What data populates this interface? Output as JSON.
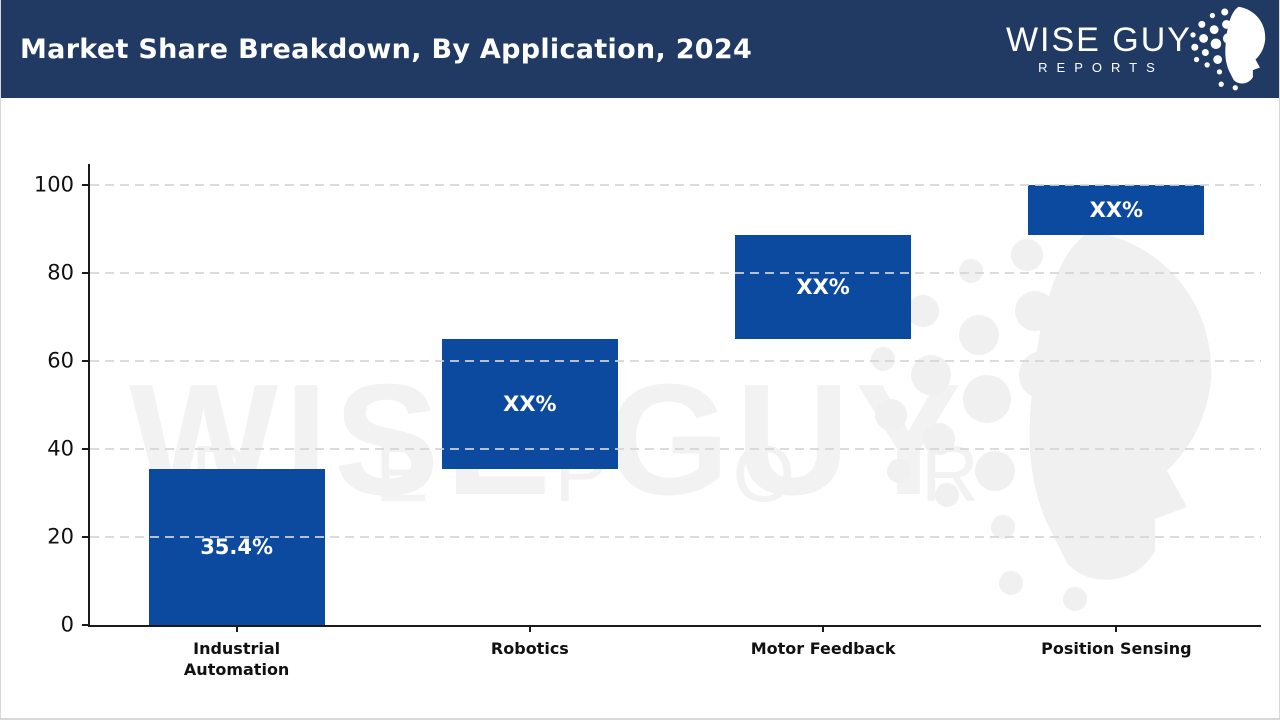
{
  "header": {
    "title": "Market Share Breakdown, By Application, 2024",
    "logo": {
      "line1": "WISE GUY",
      "line2": "REPORTS"
    },
    "bg_color": "#213a64"
  },
  "watermark": {
    "line1": "WISE GUY",
    "line2": "R E P O R T S"
  },
  "chart_data": {
    "type": "bar",
    "subtype": "waterfall-floating-bars",
    "title": "Market Share Breakdown, By Application, 2024",
    "categories": [
      "Industrial Automation",
      "Robotics",
      "Motor Feedback",
      "Position Sensing"
    ],
    "segments": [
      {
        "category": "Industrial Automation",
        "start": 0,
        "end": 35.4,
        "label": "35.4%"
      },
      {
        "category": "Robotics",
        "start": 35.4,
        "end": 65,
        "label": "XX%"
      },
      {
        "category": "Motor Feedback",
        "start": 65,
        "end": 88.6,
        "label": "XX%"
      },
      {
        "category": "Position Sensing",
        "start": 88.6,
        "end": 100,
        "label": "XX%"
      }
    ],
    "y_ticks": [
      0,
      20,
      40,
      60,
      80,
      100
    ],
    "ylim": [
      0,
      105
    ],
    "xlabel": "",
    "ylabel": "",
    "grid": "horizontal-dashed",
    "legend": "none",
    "bar_color": "#0b4a9e",
    "label_color": "#ffffff"
  }
}
